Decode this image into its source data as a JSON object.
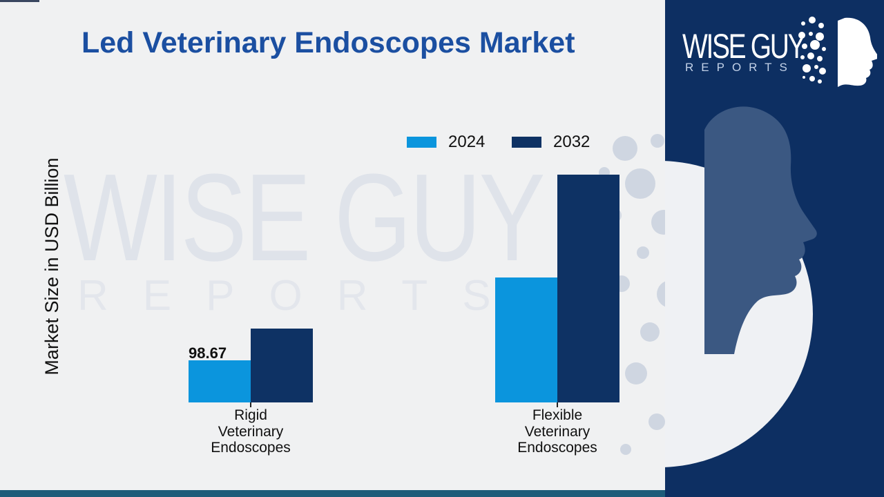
{
  "page": {
    "title": "Led Veterinary Endoscopes Market"
  },
  "brand": {
    "logo_primary": "WISE GUY",
    "logo_secondary": "REPORTS",
    "watermark_primary": "WISE GUY",
    "watermark_secondary": "REPORTS"
  },
  "chart_data": {
    "type": "bar",
    "title": "Led Veterinary Endoscopes Market",
    "ylabel": "Market Size in USD Billion",
    "categories": [
      "Rigid Veterinary Endoscopes",
      "Flexible Veterinary Endoscopes"
    ],
    "series": [
      {
        "name": "2024",
        "color": "#0b95dd",
        "values": [
          98.67,
          293
        ]
      },
      {
        "name": "2032",
        "color": "#0e3264",
        "values": [
          173,
          534
        ]
      }
    ],
    "data_labels": [
      {
        "series": "2024",
        "category": 0,
        "text": "98.67"
      }
    ],
    "legend_position": "top",
    "grid": false,
    "value_axis_visible": false
  },
  "colors": {
    "background": "#f0f1f2",
    "title_text": "#1b4fa1",
    "series_2024": "#0b95dd",
    "series_2032": "#0e3264",
    "brand_panel": "#0d2f62",
    "bottom_accent": "#1e5c79"
  }
}
